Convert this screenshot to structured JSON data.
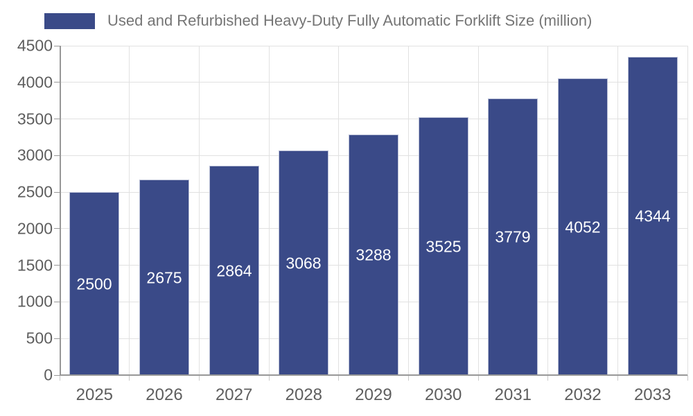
{
  "chart_data": {
    "type": "bar",
    "title": "",
    "series_name": "Used and Refurbished Heavy-Duty Fully Automatic Forklift Size (million)",
    "categories": [
      "2025",
      "2026",
      "2027",
      "2028",
      "2029",
      "2030",
      "2031",
      "2032",
      "2033"
    ],
    "values": [
      2500,
      2675,
      2864,
      3068,
      3288,
      3525,
      3779,
      4052,
      4344
    ],
    "xlabel": "",
    "ylabel": "",
    "ylim": [
      0,
      4500
    ],
    "ytick_step": 500,
    "grid": "both",
    "legend_position": "top-left",
    "value_label_position": "inside-center",
    "colors": {
      "bar_fill": "#3A4A88",
      "bar_border": "#B9BFD6",
      "value_label": "#FFFFFF",
      "grid_line": "#E1E1E1",
      "axis_line": "#979797",
      "tick_mark": "#C9C9C9",
      "tick_label": "#5E5E5E",
      "legend_text": "#757575",
      "background": "#FFFFFF"
    }
  }
}
